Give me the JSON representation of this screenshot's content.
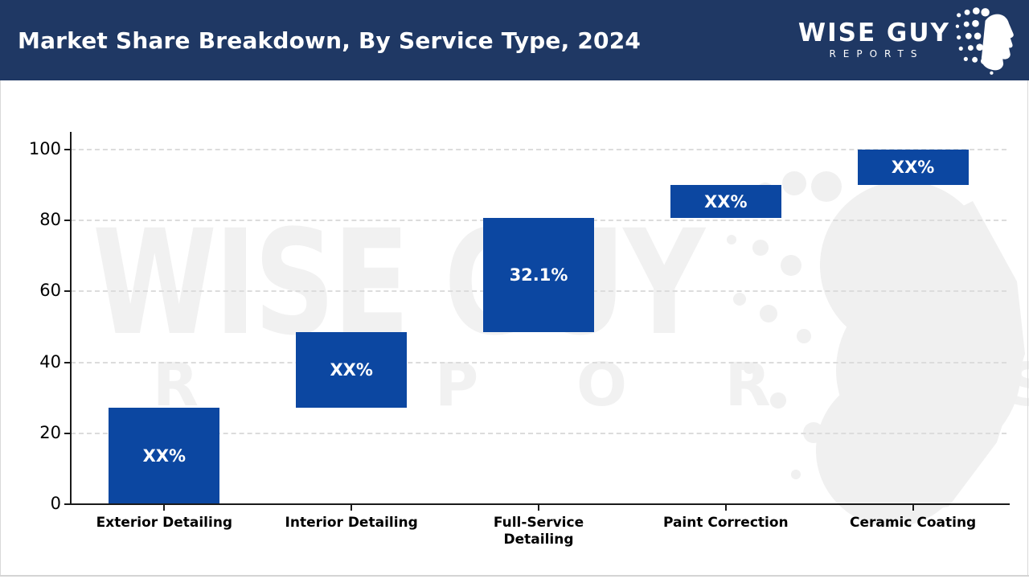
{
  "header": {
    "title": "Market Share Breakdown, By Service Type, 2024",
    "logo": {
      "line1": "WISE GUY",
      "line2": "REPORTS"
    }
  },
  "watermark": {
    "line1": "WISE GUY",
    "line2": "R E P O R T S"
  },
  "colors": {
    "header_bg": "#1f3864",
    "bar": "#0c47a1",
    "bar_label": "#ffffff",
    "gridline": "#dcdcdc",
    "axis": "#1a1a1a",
    "watermark": "#f1f1f1"
  },
  "chart_data": {
    "type": "bar",
    "subtype": "waterfall",
    "title": "Market Share Breakdown, By Service Type, 2024",
    "categories": [
      "Exterior Detailing",
      "Interior Detailing",
      "Full-Service Detailing",
      "Paint Correction",
      "Ceramic Coating"
    ],
    "values": [
      27.1,
      21.5,
      32.1,
      9.3,
      10.0
    ],
    "bar_labels": [
      "XX%",
      "XX%",
      "32.1%",
      "XX%",
      "XX%"
    ],
    "xlabel": "",
    "ylabel": "",
    "ylim": [
      0,
      100
    ],
    "yticks": [
      0,
      20,
      40,
      60,
      80,
      100
    ],
    "grid": "dashed-horizontal",
    "legend": "none"
  }
}
